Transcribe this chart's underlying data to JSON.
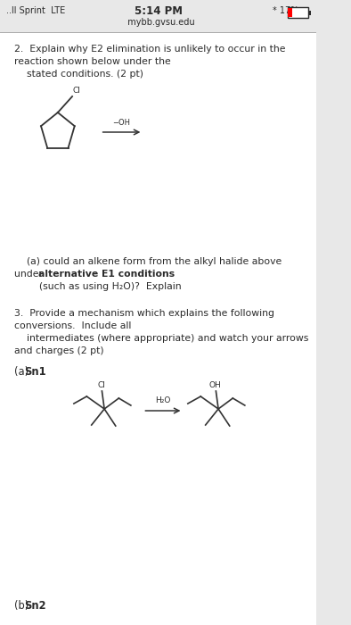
{
  "bg_color": "#e8e8e8",
  "white_bg": "#ffffff",
  "text_color": "#2a2a2a",
  "line_color": "#333333",
  "q2_lines": [
    "2.  Explain why E2 elimination is unlikely to occur in the",
    "reaction shown below under the",
    "    stated conditions. (2 pt)"
  ],
  "q2a_line1": "    (a) could an alkene form from the alkyl halide above",
  "q2a_line2_normal": "under ",
  "q2a_line2_bold": "alternative E1 conditions",
  "q2a_line3": "        (such as using H₂O)?  Explain",
  "q3_lines": [
    "3.  Provide a mechanism which explains the following",
    "conversions.  Include all",
    "    intermediates (where appropriate) and watch your arrows",
    "and charges (2 pt)"
  ],
  "q3a_normal": "(a) ",
  "q3a_bold": "Sn1",
  "q3b_normal": "(b) ",
  "q3b_bold": "Sn2",
  "h2o_label": "H₂O",
  "reagent_label": "−OH",
  "cl_label": "Cl",
  "oh_label": "OH"
}
